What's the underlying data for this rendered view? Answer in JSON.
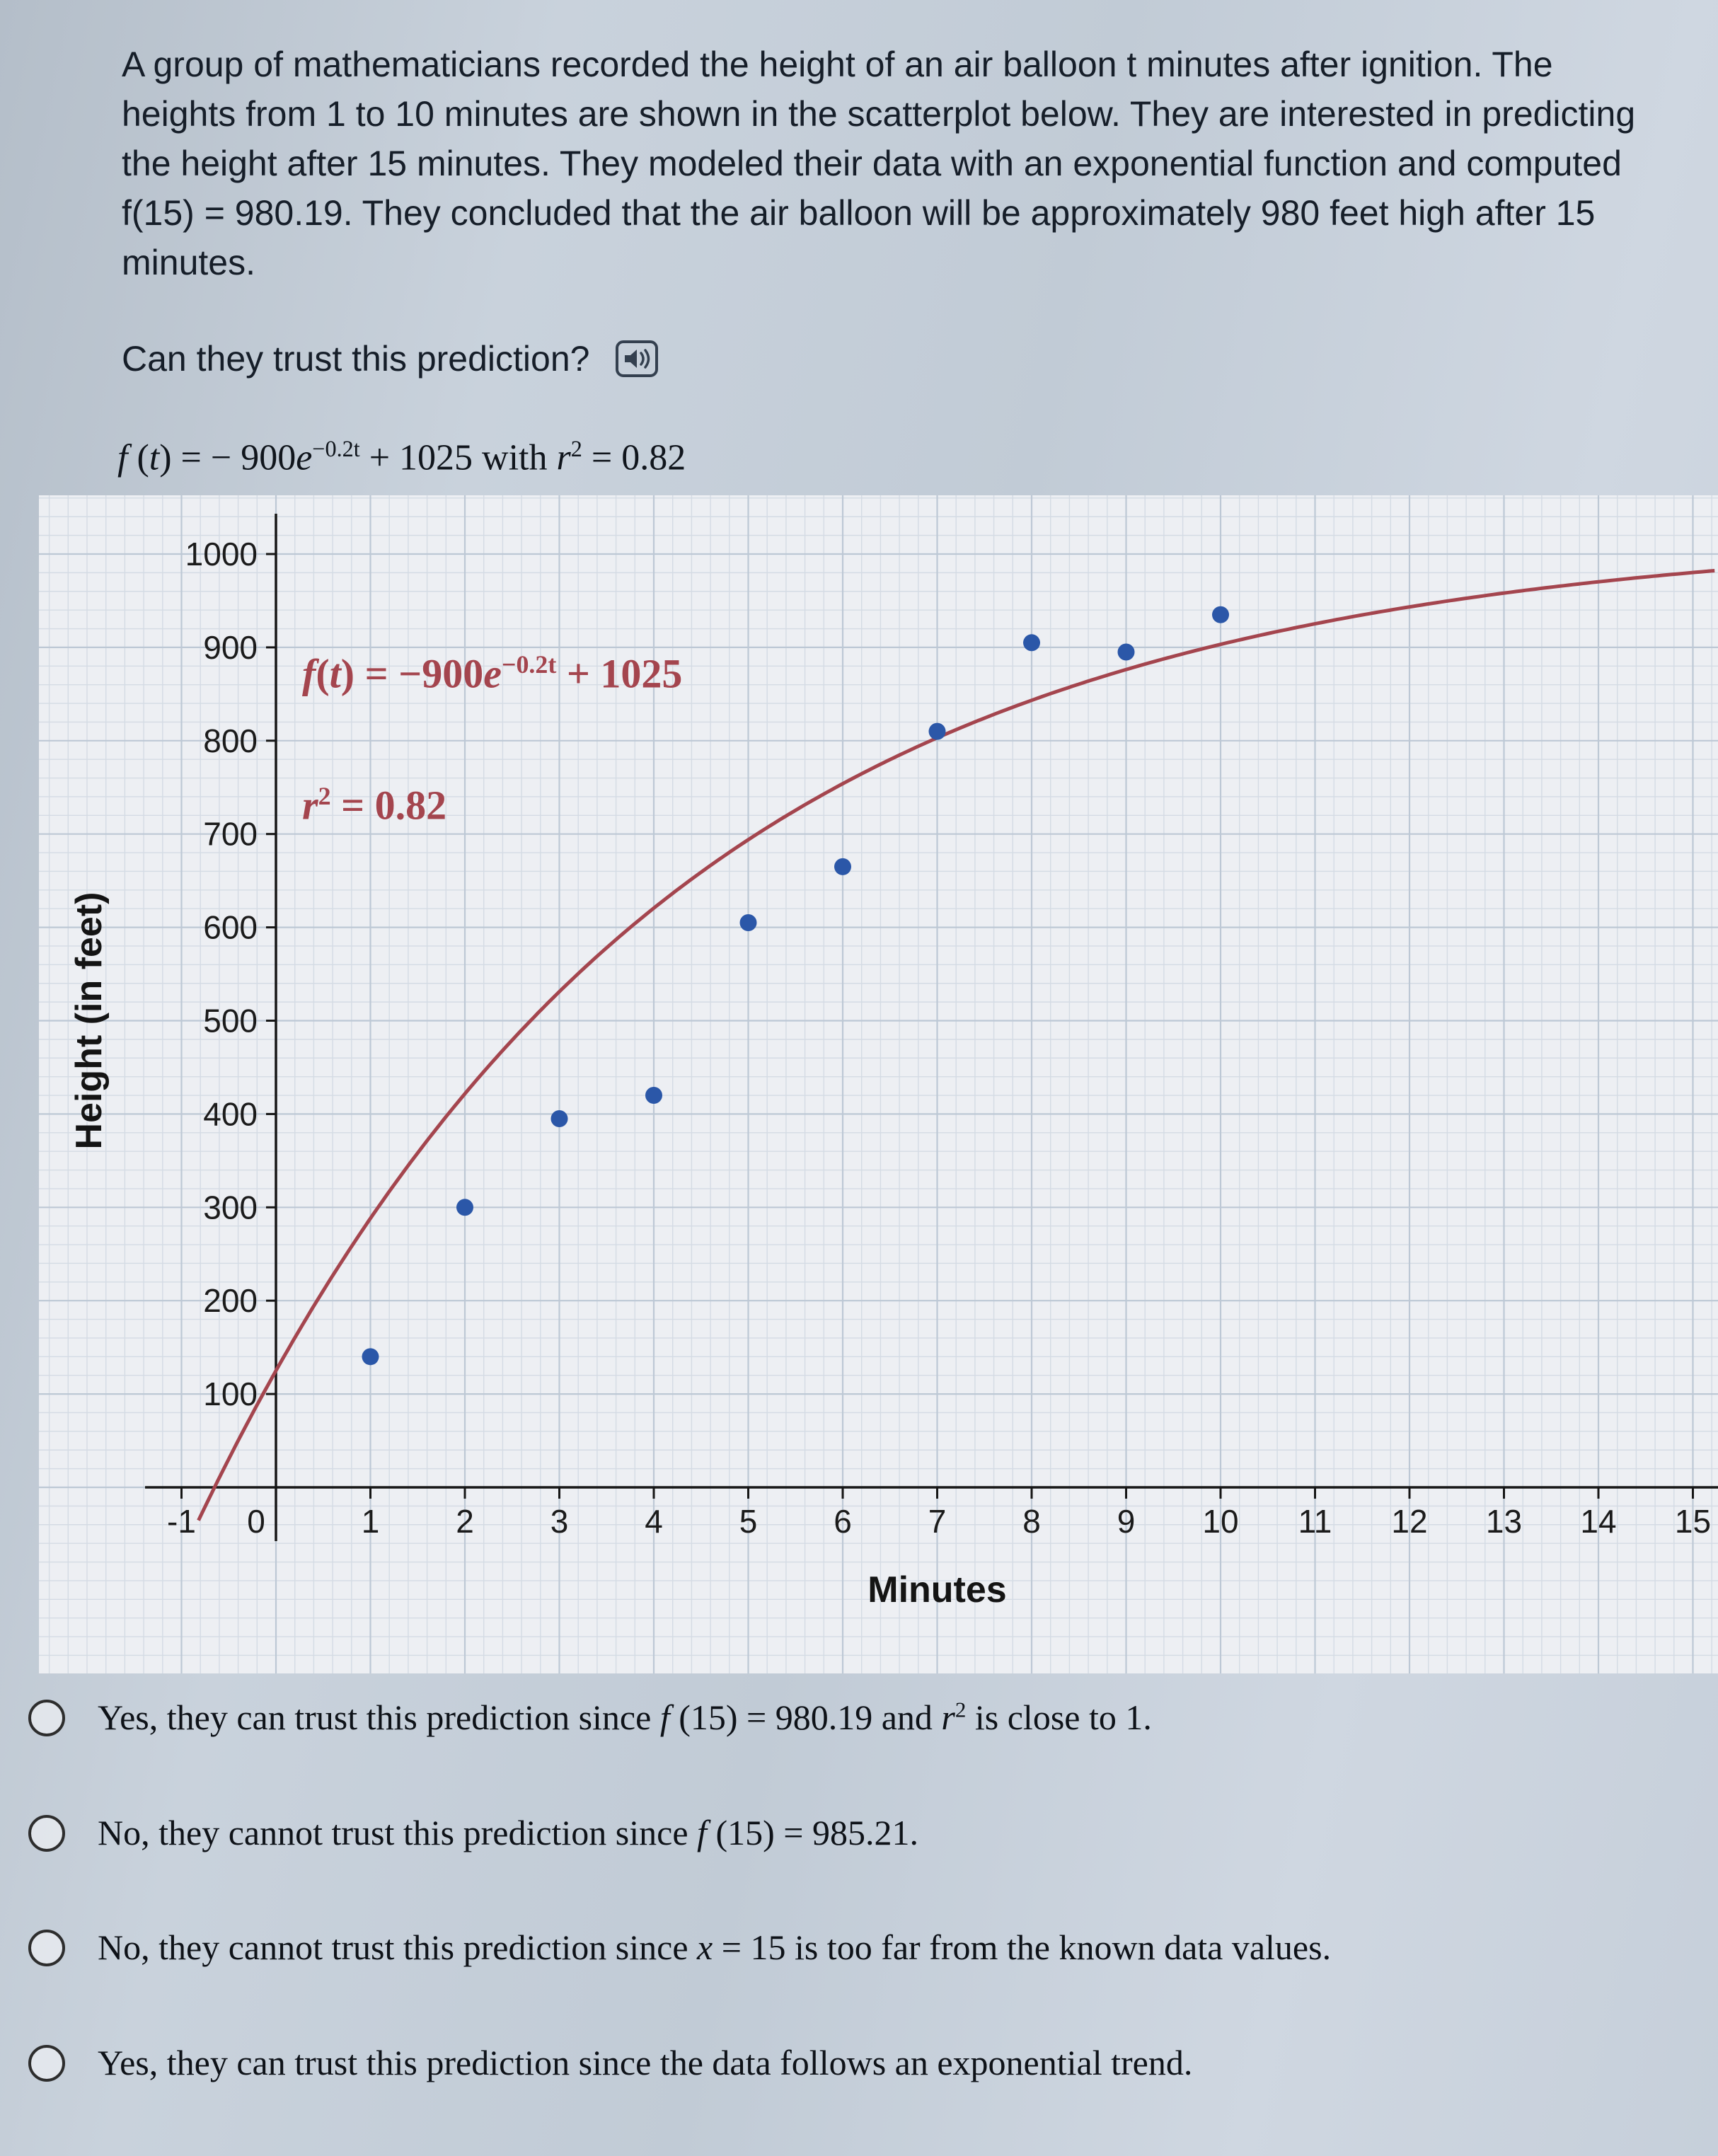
{
  "page": {
    "background_color": "#c6cfda"
  },
  "question": {
    "paragraph": "A group of mathematicians recorded the height of an air balloon t minutes after ignition. The heights from 1 to 10 minutes are shown in the scatterplot below. They are interested in predicting the height after 15 minutes. They modeled their data with an exponential function and computed f(15) = 980.19. They concluded that the air balloon will be approximately 980 feet high after 15 minutes.",
    "prompt": "Can they trust this prediction?",
    "audio_icon": "speaker-icon",
    "formula_segments": [
      {
        "t": "f",
        "s": "i"
      },
      {
        "t": " (",
        "s": "n"
      },
      {
        "t": "t",
        "s": "i"
      },
      {
        "t": ") = − 900",
        "s": "n"
      },
      {
        "t": "e",
        "s": "i"
      },
      {
        "t": "−0.2t",
        "s": "sup"
      },
      {
        "t": " + 1025 with ",
        "s": "n"
      },
      {
        "t": "r",
        "s": "i"
      },
      {
        "t": "2",
        "s": "sup"
      },
      {
        "t": " = 0.82",
        "s": "n"
      }
    ]
  },
  "chart_data": {
    "type": "scatter",
    "title": "",
    "xlabel": "Minutes",
    "ylabel": "Height (in feet)",
    "xlim": [
      -1.4,
      15.3
    ],
    "ylim": [
      0,
      1060
    ],
    "x_ticks": [
      -1,
      0,
      1,
      2,
      3,
      4,
      5,
      6,
      7,
      8,
      9,
      10,
      11,
      12,
      13,
      14,
      15
    ],
    "y_ticks": [
      100,
      200,
      300,
      400,
      500,
      600,
      700,
      800,
      900,
      1000
    ],
    "grid": true,
    "points": [
      [
        1,
        140
      ],
      [
        2,
        300
      ],
      [
        3,
        395
      ],
      [
        4,
        420
      ],
      [
        5,
        605
      ],
      [
        6,
        665
      ],
      [
        7,
        810
      ],
      [
        8,
        905
      ],
      [
        9,
        895
      ],
      [
        10,
        935
      ]
    ],
    "model": {
      "formula": "f(t) = -900e^(-0.2t) + 1025",
      "a": -900,
      "b": -0.2,
      "c": 1025,
      "r_squared": 0.82
    },
    "curve_color": "#a4454e",
    "point_color": "#2b57a8",
    "annotation1_segments": [
      {
        "t": "f",
        "s": "i"
      },
      {
        "t": "(",
        "s": "n"
      },
      {
        "t": "t",
        "s": "i"
      },
      {
        "t": ") = −900",
        "s": "n"
      },
      {
        "t": "e",
        "s": "i"
      },
      {
        "t": "−0.2t",
        "s": "sup"
      },
      {
        "t": " + 1025",
        "s": "n"
      }
    ],
    "annotation2_segments": [
      {
        "t": "r",
        "s": "i"
      },
      {
        "t": "2",
        "s": "sup"
      },
      {
        "t": " = 0.82",
        "s": "n"
      }
    ]
  },
  "options": [
    {
      "segments": [
        {
          "t": "Yes, they can trust this prediction since ",
          "s": "n"
        },
        {
          "t": "f",
          "s": "i"
        },
        {
          "t": " (15) = 980.19 and ",
          "s": "n"
        },
        {
          "t": "r",
          "s": "i"
        },
        {
          "t": "2",
          "s": "sup"
        },
        {
          "t": " is close to 1.",
          "s": "n"
        }
      ]
    },
    {
      "segments": [
        {
          "t": "No, they cannot trust this prediction since ",
          "s": "n"
        },
        {
          "t": "f",
          "s": "i"
        },
        {
          "t": " (15) = 985.21.",
          "s": "n"
        }
      ]
    },
    {
      "segments": [
        {
          "t": "No, they cannot trust this prediction since ",
          "s": "n"
        },
        {
          "t": "x",
          "s": "i"
        },
        {
          "t": " = 15 is too far from the known data values.",
          "s": "n"
        }
      ]
    },
    {
      "segments": [
        {
          "t": "Yes, they can trust this prediction since the data follows an exponential trend.",
          "s": "n"
        }
      ]
    }
  ]
}
